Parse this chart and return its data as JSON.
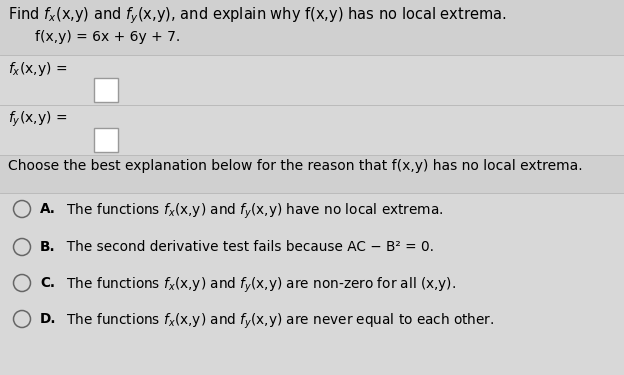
{
  "background_color": "#d8d8d8",
  "text_color": "#000000",
  "box_color": "#ffffff",
  "circle_edge_color": "#666666",
  "line_color": "#aaaaaa",
  "font_size_title": 10.5,
  "font_size_body": 10.0,
  "font_size_options": 9.8,
  "title_line": "Find $f_x$(x,y) and $f_y$(x,y), and explain why f(x,y) has no local extrema.",
  "function_line": "f(x,y) = 6x + 6y + 7.",
  "fx_label": "$f_x$(x,y) =",
  "fy_label": "$f_y$(x,y) =",
  "choose_line": "Choose the best explanation below for the reason that f(x,y) has no local extrema.",
  "options": [
    {
      "bold": "A.",
      "text": "  The functions $f_x$(x,y) and $f_y$(x,y) have no local extrema."
    },
    {
      "bold": "B.",
      "text": "  The second derivative test fails because AC − B² = 0."
    },
    {
      "bold": "C.",
      "text": "  The functions $f_x$(x,y) and $f_y$(x,y) are non-zero for all (x,y)."
    },
    {
      "bold": "D.",
      "text": "  The functions $f_x$(x,y) and $f_y$(x,y) are never equal to each other."
    }
  ]
}
